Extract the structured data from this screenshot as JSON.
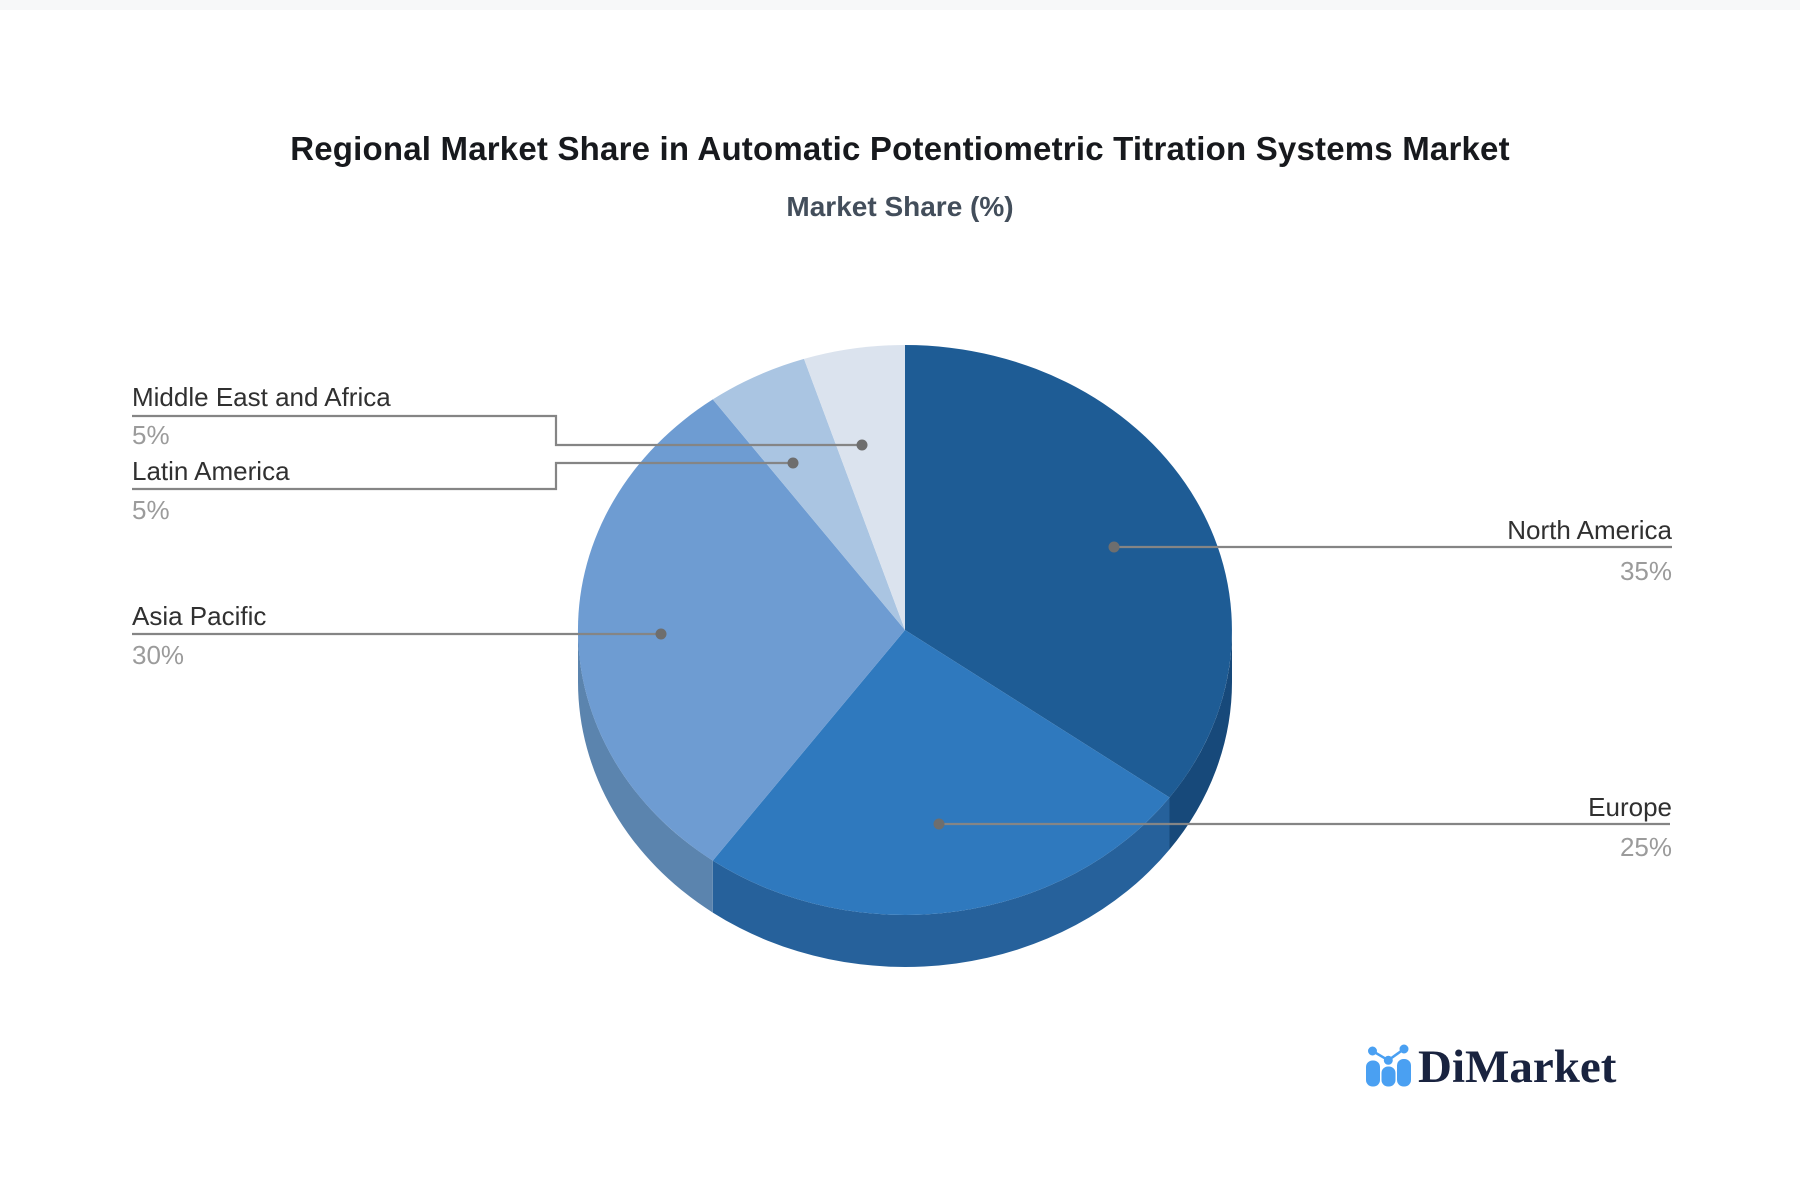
{
  "header": {
    "title": "Regional Market Share in Automatic Potentiometric Titration Systems Market",
    "subtitle": "Market Share (%)"
  },
  "chart_data": {
    "type": "pie",
    "style": "3d",
    "title": "Regional Market Share in Automatic Potentiometric Titration Systems Market",
    "subtitle": "Market Share (%)",
    "unit": "%",
    "start_angle_deg": 0,
    "direction": "clockwise",
    "legend": "none",
    "slices": [
      {
        "label": "North America",
        "value": 35,
        "value_label": "35%",
        "color": "#1e5c95",
        "side_color": "#17497a"
      },
      {
        "label": "Europe",
        "value": 25,
        "value_label": "25%",
        "color": "#2f79be",
        "side_color": "#26619b"
      },
      {
        "label": "Asia Pacific",
        "value": 30,
        "value_label": "30%",
        "color": "#6e9cd2",
        "side_color": "#5b84ae"
      },
      {
        "label": "Latin America",
        "value": 5,
        "value_label": "5%",
        "color": "#aac5e2",
        "side_color": "#8da9c4"
      },
      {
        "label": "Middle East and Africa",
        "value": 5,
        "value_label": "5%",
        "color": "#dbe3ee",
        "side_color": "#b8c2d1"
      }
    ],
    "colors": {
      "connector_line": "#858585",
      "connector_dot": "#6e6e6e",
      "label_text": "#303030",
      "percent_text": "#9b9b9b"
    }
  },
  "branding": {
    "logo_text": "DiMarket",
    "logo_text_color": "#19233f",
    "logo_icon": "bar-chart-with-trend-icon",
    "logo_icon_color": "#4aa0f2"
  }
}
